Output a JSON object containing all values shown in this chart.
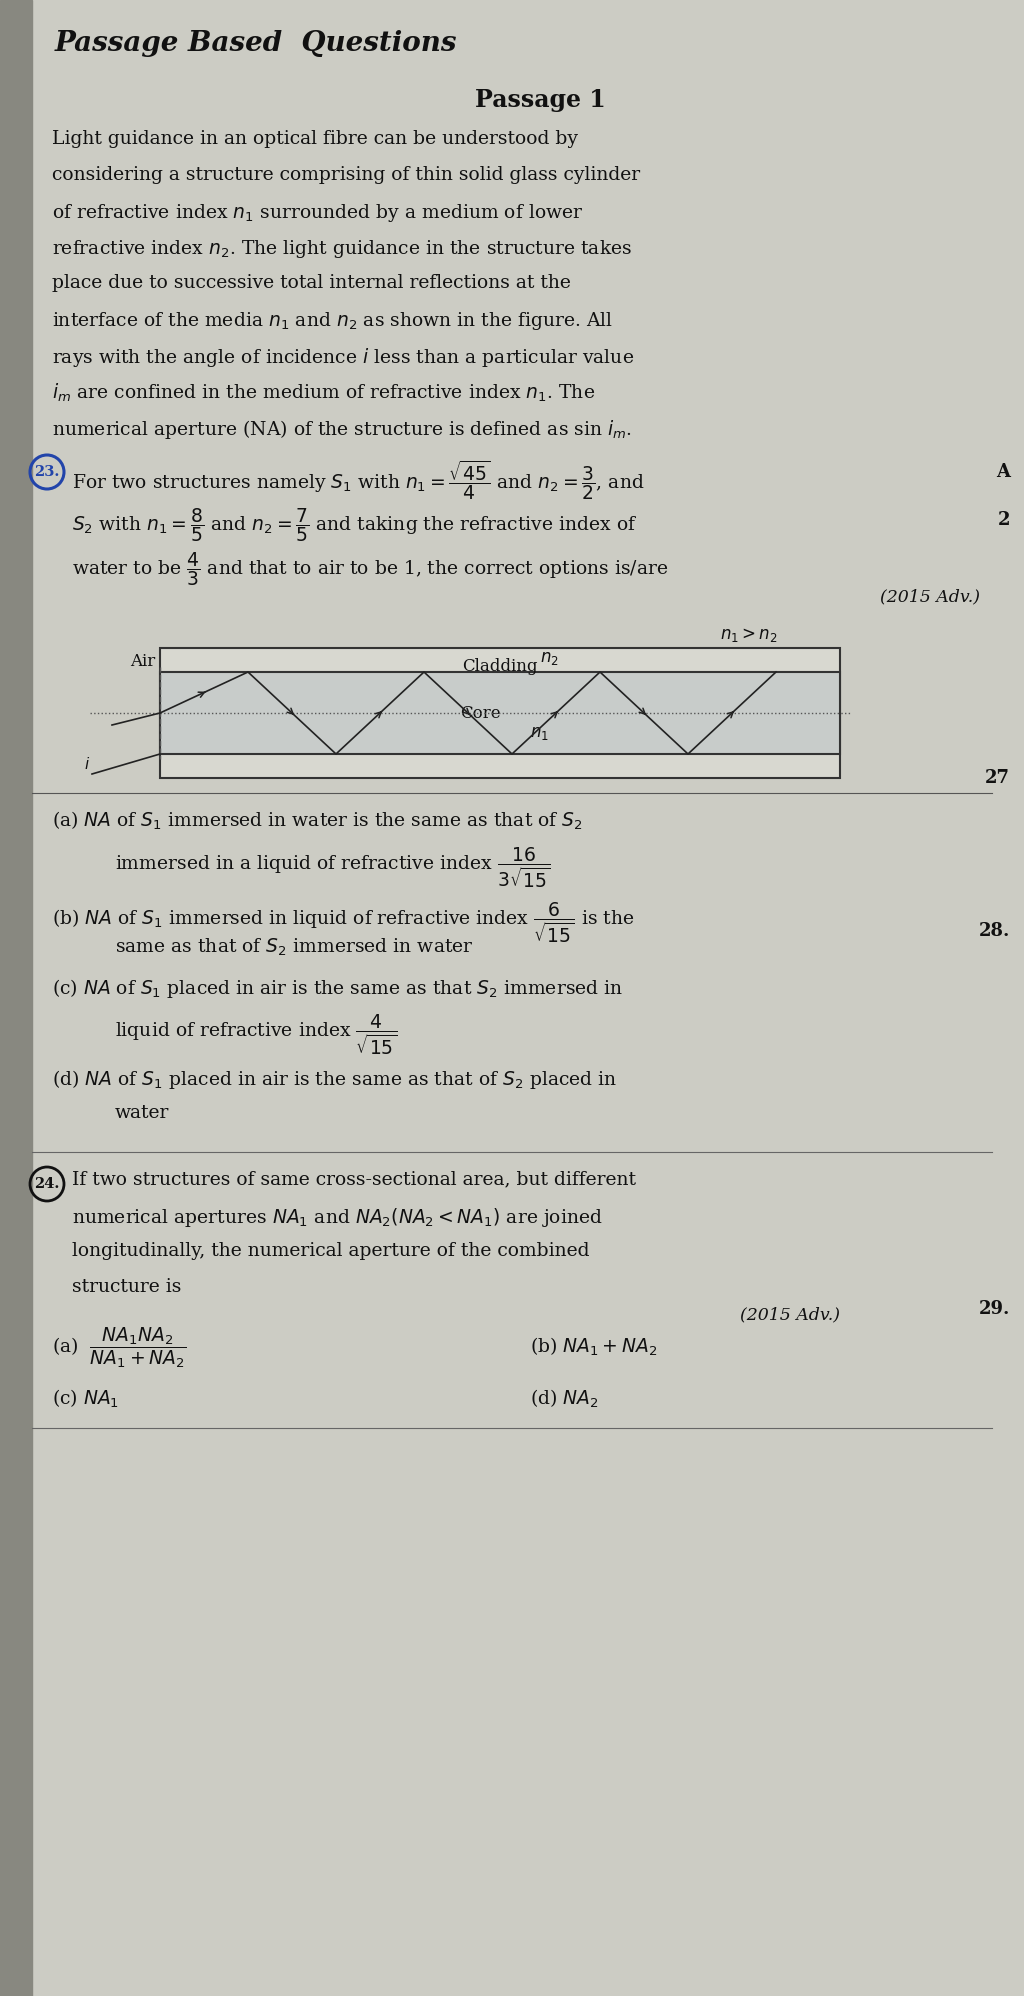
{
  "bg_color": "#ccccc4",
  "text_color": "#111111",
  "title": "Passage Based  Questions",
  "passage_title": "Passage 1",
  "passage_lines": [
    "Light guidance in an optical fibre can be understood by",
    "considering a structure comprising of thin solid glass cylinder",
    "of refractive index $n_1$ surrounded by a medium of lower",
    "refractive index $n_2$. The light guidance in the structure takes",
    "place due to successive total internal reflections at the",
    "interface of the media $n_1$ and $n_2$ as shown in the figure. All",
    "rays with the angle of incidence $i$ less than a particular value",
    "$i_m$ are confined in the medium of refractive index $n_1$. The",
    "numerical aperture (NA) of the structure is defined as sin $i_m$."
  ],
  "q23_line1": "For two structures namely $S_1$ with $n_1 = \\dfrac{\\sqrt{45}}{4}$ and $n_2 = \\dfrac{3}{2}$, and",
  "q23_line2": "$S_2$ with $n_1 = \\dfrac{8}{5}$ and $n_2 = \\dfrac{7}{5}$ and taking the refractive index of",
  "q23_line3": "water to be $\\dfrac{4}{3}$ and that to air to be 1, the correct options is/are",
  "q23_year": "(2015 Adv.)",
  "opt_a1": "(a) $NA$ of $S_1$ immersed in water is the same as that of $S_2$",
  "opt_a2": "immersed in a liquid of refractive index $\\dfrac{16}{3\\sqrt{15}}$",
  "opt_b1": "(b) $NA$ of $S_1$ immersed in liquid of refractive index $\\dfrac{6}{\\sqrt{15}}$ is the",
  "opt_b2": "same as that of $S_2$ immersed in water",
  "opt_c1": "(c) $NA$ of $S_1$ placed in air is the same as that $S_2$ immersed in",
  "opt_c2": "liquid of refractive index $\\dfrac{4}{\\sqrt{15}}$",
  "opt_d1": "(d) $NA$ of $S_1$ placed in air is the same as that of $S_2$ placed in",
  "opt_d2": "water",
  "q24_line1": "If two structures of same cross-sectional area, but different",
  "q24_line2": "numerical apertures $NA_1$ and $NA_2(NA_2 < NA_1)$ are joined",
  "q24_line3": "longitudinally, the numerical aperture of the combined",
  "q24_line4": "structure is",
  "q24_year": "(2015 Adv.)",
  "q24a": "(a)  $\\dfrac{NA_1 NA_2}{NA_1 + NA_2}$",
  "q24b": "(b) $NA_1 + NA_2$",
  "q24c": "(c) $NA_1$",
  "q24d": "(d) $NA_2$",
  "pg_A": "A",
  "pg_2": "2",
  "pg_27": "27",
  "pg_28": "28.",
  "pg_29": "29."
}
